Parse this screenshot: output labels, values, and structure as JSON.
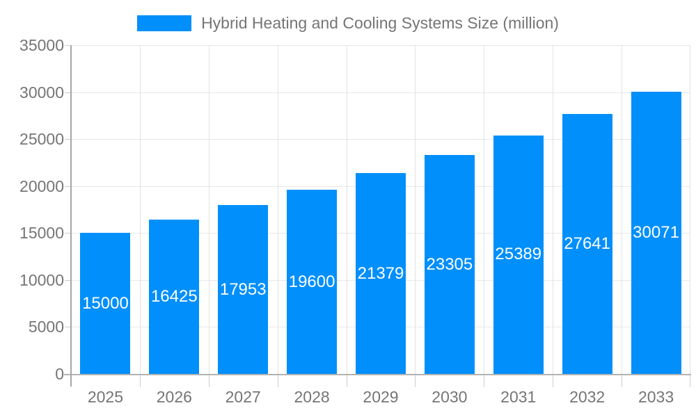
{
  "chart_data": {
    "type": "bar",
    "title": "Hybrid Heating and Cooling Systems Size (million)",
    "categories": [
      "2025",
      "2026",
      "2027",
      "2028",
      "2029",
      "2030",
      "2031",
      "2032",
      "2033"
    ],
    "series": [
      {
        "name": "Hybrid Heating and Cooling Systems Size (million)",
        "values": [
          15000,
          16425,
          17953,
          19600,
          21379,
          23305,
          25389,
          27641,
          30071
        ]
      }
    ],
    "data_labels": [
      "15000",
      "16425",
      "17953",
      "19600",
      "21379",
      "23305",
      "25389",
      "27641",
      "30071"
    ],
    "xlabel": "",
    "ylabel": "",
    "ylim": [
      0,
      35000
    ],
    "y_tick_step": 5000,
    "y_tick_labels": [
      "0",
      "5000",
      "10000",
      "15000",
      "20000",
      "25000",
      "30000",
      "35000"
    ],
    "grid": true,
    "legend_position": "top",
    "colors": {
      "bar": "#008FFB",
      "data_label": "#ffffff",
      "axis_label": "#757575",
      "legend_label": "#757575",
      "gridline_h": "#e7e7e7",
      "gridline_v": "#e2e2e2",
      "y_axis_line": "#a6a6a6",
      "x_axis_line": "#b3b3b3",
      "tick": "#cccccc",
      "background": "#ffffff"
    }
  }
}
